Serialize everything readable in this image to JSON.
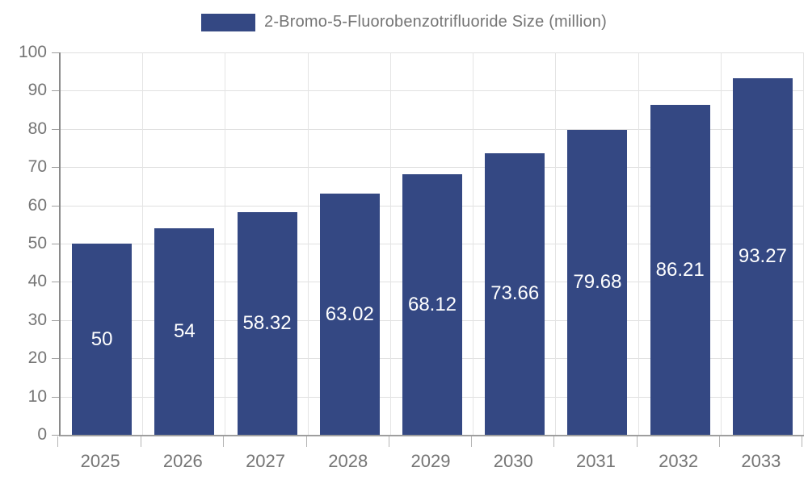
{
  "legend": {
    "label": "2-Bromo-5-Fluorobenzotrifluoride Size (million)",
    "swatch_color": "#344883"
  },
  "chart_data": {
    "type": "bar",
    "title": "2-Bromo-5-Fluorobenzotrifluoride Size (million)",
    "categories": [
      "2025",
      "2026",
      "2027",
      "2028",
      "2029",
      "2030",
      "2031",
      "2032",
      "2033"
    ],
    "values": [
      50,
      54,
      58.32,
      63.02,
      68.12,
      73.66,
      79.68,
      86.21,
      93.27
    ],
    "value_labels": [
      "50",
      "54",
      "58.32",
      "63.02",
      "68.12",
      "73.66",
      "79.68",
      "86.21",
      "93.27"
    ],
    "xlabel": "",
    "ylabel": "",
    "ylim": [
      0,
      100
    ],
    "ytick_step": 10,
    "ytick_labels": [
      "0",
      "10",
      "20",
      "30",
      "40",
      "50",
      "60",
      "70",
      "80",
      "90",
      "100"
    ],
    "grid": true,
    "legend_position": "top",
    "bar_color": "#344883",
    "value_label_color": "#ffffff",
    "axis_text_color": "#757575",
    "gridline_color": "#e0e0e0"
  }
}
